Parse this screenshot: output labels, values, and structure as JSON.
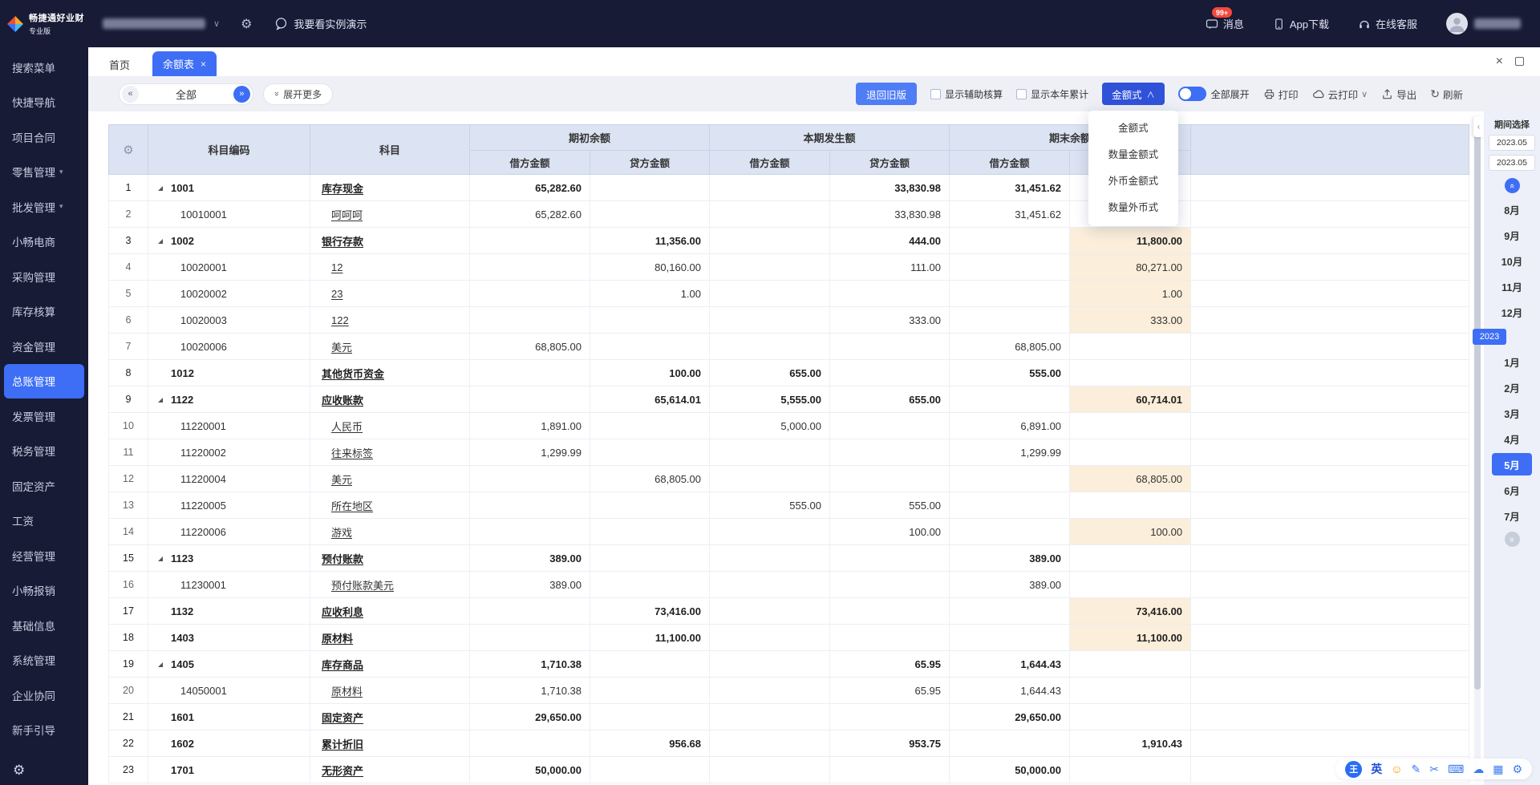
{
  "brand": {
    "name": "畅捷通好业财",
    "edition": "专业版"
  },
  "topbar": {
    "demo": "我要看实例演示",
    "messages": "消息",
    "messages_badge": "99+",
    "app_download": "App下载",
    "support": "在线客服"
  },
  "sidebar": {
    "items": [
      {
        "label": "搜索菜单"
      },
      {
        "label": "快捷导航"
      },
      {
        "label": "项目合同"
      },
      {
        "label": "零售管理",
        "arrow": true
      },
      {
        "label": "批发管理",
        "arrow": true
      },
      {
        "label": "小畅电商"
      },
      {
        "label": "采购管理"
      },
      {
        "label": "库存核算"
      },
      {
        "label": "资金管理"
      },
      {
        "label": "总账管理",
        "active": true
      },
      {
        "label": "发票管理"
      },
      {
        "label": "税务管理"
      },
      {
        "label": "固定资产"
      },
      {
        "label": "工资"
      },
      {
        "label": "经营管理"
      },
      {
        "label": "小畅报销"
      },
      {
        "label": "基础信息"
      },
      {
        "label": "系统管理"
      },
      {
        "label": "企业协同"
      },
      {
        "label": "新手引导"
      }
    ]
  },
  "tabs": [
    {
      "label": "首页",
      "active": false
    },
    {
      "label": "余额表",
      "active": true
    }
  ],
  "toolbar": {
    "filter_value": "全部",
    "expand_more": "展开更多",
    "back_to_old": "退回旧版",
    "checkbox_aux": "显示辅助核算",
    "checkbox_ytd": "显示本年累计",
    "amount_style": "金额式",
    "amount_style_options": [
      "金额式",
      "数量金额式",
      "外币金额式",
      "数量外币式"
    ],
    "expand_all": "全部展开",
    "print": "打印",
    "cloud_print": "云打印",
    "export": "导出",
    "refresh": "刷新"
  },
  "table": {
    "col_code": "科目编码",
    "col_subject": "科目",
    "groups": [
      "期初余额",
      "本期发生额",
      "期末余额"
    ],
    "sub_debit": "借方金额",
    "sub_credit": "贷方金额",
    "rows": [
      {
        "n": 1,
        "code": "1001",
        "name": "库存现金",
        "level": 1,
        "expand": true,
        "hl": false,
        "v": [
          "65,282.60",
          "",
          "",
          "33,830.98",
          "31,451.62",
          ""
        ]
      },
      {
        "n": 2,
        "code": "10010001",
        "name": "呵呵呵",
        "level": 2,
        "expand": false,
        "hl": false,
        "v": [
          "65,282.60",
          "",
          "",
          "33,830.98",
          "31,451.62",
          ""
        ]
      },
      {
        "n": 3,
        "code": "1002",
        "name": "银行存款",
        "level": 1,
        "expand": true,
        "hl": true,
        "v": [
          "",
          "11,356.00",
          "",
          "444.00",
          "",
          "11,800.00"
        ]
      },
      {
        "n": 4,
        "code": "10020001",
        "name": "12",
        "level": 2,
        "expand": false,
        "hl": true,
        "v": [
          "",
          "80,160.00",
          "",
          "111.00",
          "",
          "80,271.00"
        ]
      },
      {
        "n": 5,
        "code": "10020002",
        "name": "23",
        "level": 2,
        "expand": false,
        "hl": true,
        "v": [
          "",
          "1.00",
          "",
          "",
          "",
          "1.00"
        ]
      },
      {
        "n": 6,
        "code": "10020003",
        "name": "122",
        "level": 2,
        "expand": false,
        "hl": true,
        "v": [
          "",
          "",
          "",
          "333.00",
          "",
          "333.00"
        ]
      },
      {
        "n": 7,
        "code": "10020006",
        "name": "美元",
        "level": 2,
        "expand": false,
        "hl": false,
        "v": [
          "68,805.00",
          "",
          "",
          "",
          "68,805.00",
          ""
        ]
      },
      {
        "n": 8,
        "code": "1012",
        "name": "其他货币资金",
        "level": 1,
        "expand": false,
        "hl": false,
        "v": [
          "",
          "100.00",
          "655.00",
          "",
          "555.00",
          ""
        ]
      },
      {
        "n": 9,
        "code": "1122",
        "name": "应收账款",
        "level": 1,
        "expand": true,
        "hl": true,
        "v": [
          "",
          "65,614.01",
          "5,555.00",
          "655.00",
          "",
          "60,714.01"
        ]
      },
      {
        "n": 10,
        "code": "11220001",
        "name": "人民币",
        "level": 2,
        "expand": false,
        "hl": false,
        "v": [
          "1,891.00",
          "",
          "5,000.00",
          "",
          "6,891.00",
          ""
        ]
      },
      {
        "n": 11,
        "code": "11220002",
        "name": "往来标签",
        "level": 2,
        "expand": false,
        "hl": false,
        "v": [
          "1,299.99",
          "",
          "",
          "",
          "1,299.99",
          ""
        ]
      },
      {
        "n": 12,
        "code": "11220004",
        "name": "美元",
        "level": 2,
        "expand": false,
        "hl": true,
        "v": [
          "",
          "68,805.00",
          "",
          "",
          "",
          "68,805.00"
        ]
      },
      {
        "n": 13,
        "code": "11220005",
        "name": "所在地区",
        "level": 2,
        "expand": false,
        "hl": false,
        "v": [
          "",
          "",
          "555.00",
          "555.00",
          "",
          ""
        ]
      },
      {
        "n": 14,
        "code": "11220006",
        "name": "游戏",
        "level": 2,
        "expand": false,
        "hl": true,
        "v": [
          "",
          "",
          "",
          "100.00",
          "",
          "100.00"
        ]
      },
      {
        "n": 15,
        "code": "1123",
        "name": "预付账款",
        "level": 1,
        "expand": true,
        "hl": false,
        "v": [
          "389.00",
          "",
          "",
          "",
          "389.00",
          ""
        ]
      },
      {
        "n": 16,
        "code": "11230001",
        "name": "预付账款美元",
        "level": 2,
        "expand": false,
        "hl": false,
        "v": [
          "389.00",
          "",
          "",
          "",
          "389.00",
          ""
        ]
      },
      {
        "n": 17,
        "code": "1132",
        "name": "应收利息",
        "level": 1,
        "expand": false,
        "hl": true,
        "v": [
          "",
          "73,416.00",
          "",
          "",
          "",
          "73,416.00"
        ]
      },
      {
        "n": 18,
        "code": "1403",
        "name": "原材料",
        "level": 1,
        "expand": false,
        "hl": true,
        "v": [
          "",
          "11,100.00",
          "",
          "",
          "",
          "11,100.00"
        ]
      },
      {
        "n": 19,
        "code": "1405",
        "name": "库存商品",
        "level": 1,
        "expand": true,
        "hl": false,
        "v": [
          "1,710.38",
          "",
          "",
          "65.95",
          "1,644.43",
          ""
        ]
      },
      {
        "n": 20,
        "code": "14050001",
        "name": "原材料",
        "level": 2,
        "expand": false,
        "hl": false,
        "v": [
          "1,710.38",
          "",
          "",
          "65.95",
          "1,644.43",
          ""
        ]
      },
      {
        "n": 21,
        "code": "1601",
        "name": "固定资产",
        "level": 1,
        "expand": false,
        "hl": false,
        "v": [
          "29,650.00",
          "",
          "",
          "",
          "29,650.00",
          ""
        ]
      },
      {
        "n": 22,
        "code": "1602",
        "name": "累计折旧",
        "level": 1,
        "expand": false,
        "hl": false,
        "v": [
          "",
          "956.68",
          "",
          "953.75",
          "",
          "1,910.43"
        ]
      },
      {
        "n": 23,
        "code": "1701",
        "name": "无形资产",
        "level": 1,
        "expand": false,
        "hl": false,
        "v": [
          "50,000.00",
          "",
          "",
          "",
          "50,000.00",
          ""
        ]
      }
    ]
  },
  "period_panel": {
    "title": "期间选择",
    "date_from": "2023.05",
    "date_to": "2023.05",
    "year_badge": "2023",
    "months_prev": [
      "8月",
      "9月",
      "10月",
      "11月",
      "12月"
    ],
    "months_next": [
      "1月",
      "2月",
      "3月",
      "4月",
      "5月",
      "6月",
      "7月"
    ],
    "selected": "5月"
  },
  "ime": {
    "logo_glyph": "王",
    "lang": "英",
    "icons": [
      {
        "name": "emoji-icon",
        "glyph": "☺"
      },
      {
        "name": "handwriting-pen-icon",
        "glyph": "✎"
      },
      {
        "name": "screenshot-scissors-icon",
        "glyph": "✂"
      },
      {
        "name": "keyboard-icon",
        "glyph": "⌨"
      },
      {
        "name": "cloud-icon",
        "glyph": "☁"
      },
      {
        "name": "toolbox-grid-icon",
        "glyph": "▦"
      },
      {
        "name": "ime-settings-gear-icon",
        "glyph": "⚙"
      }
    ]
  }
}
